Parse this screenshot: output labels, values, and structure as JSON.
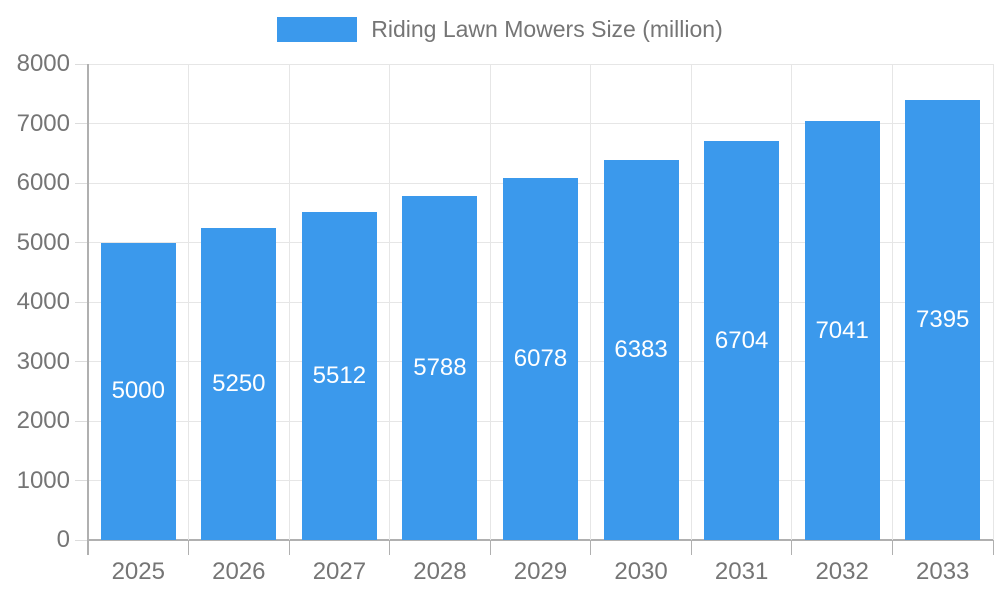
{
  "chart_data": {
    "type": "bar",
    "title": "Riding Lawn Mowers Size (million)",
    "series_name": "Riding Lawn Mowers Size (million)",
    "categories": [
      "2025",
      "2026",
      "2027",
      "2028",
      "2029",
      "2030",
      "2031",
      "2032",
      "2033"
    ],
    "values": [
      5000,
      5250,
      5512,
      5788,
      6078,
      6383,
      6704,
      7041,
      7395
    ],
    "xlabel": "",
    "ylabel": "",
    "ylim": [
      0,
      8000
    ],
    "ytick_step": 1000,
    "yticks": [
      0,
      1000,
      2000,
      3000,
      4000,
      5000,
      6000,
      7000,
      8000
    ],
    "grid": true,
    "legend_position": "top",
    "colors": {
      "bar": "#3B99EC",
      "value_label": "#FFFFFF",
      "axis_text": "#757575",
      "gridline": "#E6E6E6",
      "outer_tick": "#DCDCDC",
      "axis_line": "#B0B0B0",
      "background": "#FFFFFF"
    }
  }
}
